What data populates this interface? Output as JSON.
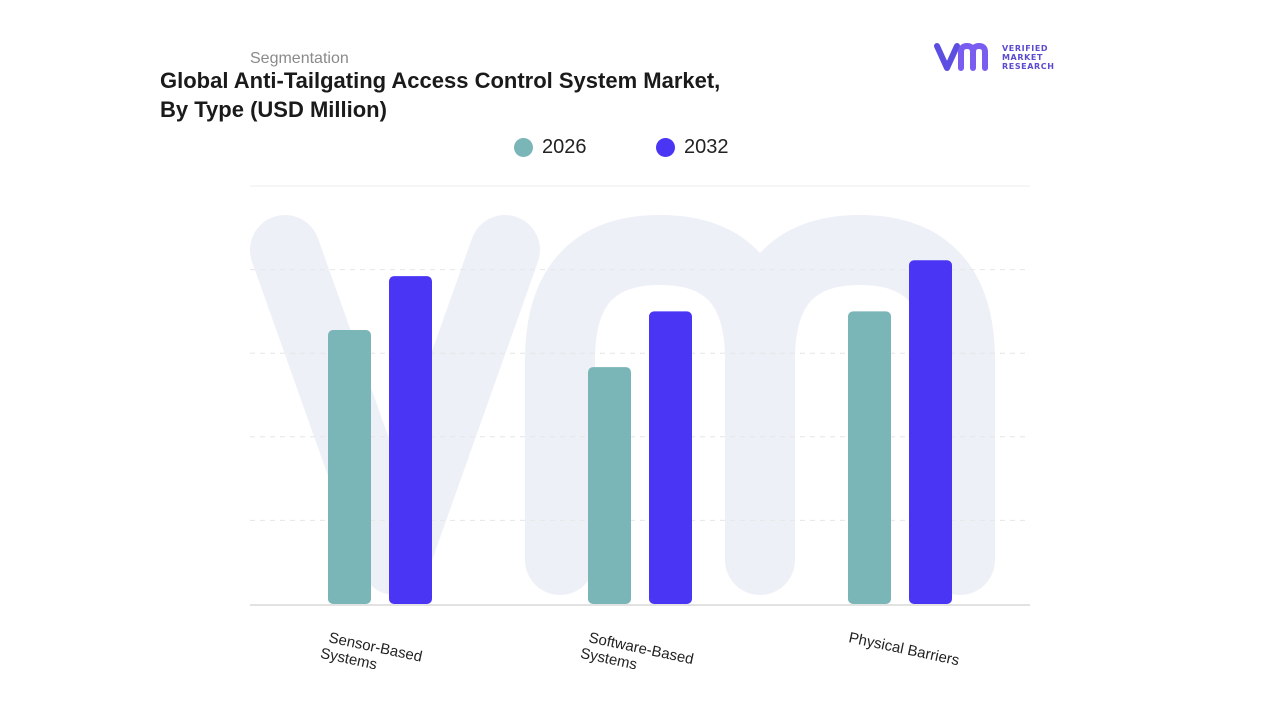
{
  "header": {
    "segment": "Segmentation",
    "title_line1": "Global Anti-Tailgating Access Control System Market,",
    "title_line2": "By Type (USD Million)"
  },
  "logo": {
    "mark": "vm",
    "line1": "VERIFIED",
    "line2": "MARKET",
    "line3": "RESEARCH",
    "color": "#5b4ee0"
  },
  "legend": [
    {
      "label": "2026",
      "color": "#7ab5b8"
    },
    {
      "label": "2032",
      "color": "#4a35f5"
    }
  ],
  "chart_data": {
    "type": "bar",
    "categories": [
      "Sensor-Based Systems",
      "Software-Based Systems",
      "Physical Barriers"
    ],
    "category_lines": [
      [
        "Sensor-Based",
        "Systems"
      ],
      [
        "Software-Based",
        "Systems"
      ],
      [
        "Physical Barriers"
      ]
    ],
    "series": [
      {
        "name": "2026",
        "color": "#7ab5b8",
        "values": [
          2.95,
          2.55,
          3.15
        ]
      },
      {
        "name": "2032",
        "color": "#4a35f5",
        "values": [
          3.53,
          3.15,
          3.7
        ]
      }
    ],
    "ylim": [
      0,
      4.5
    ],
    "grid": true,
    "legend_position": "top-center"
  }
}
